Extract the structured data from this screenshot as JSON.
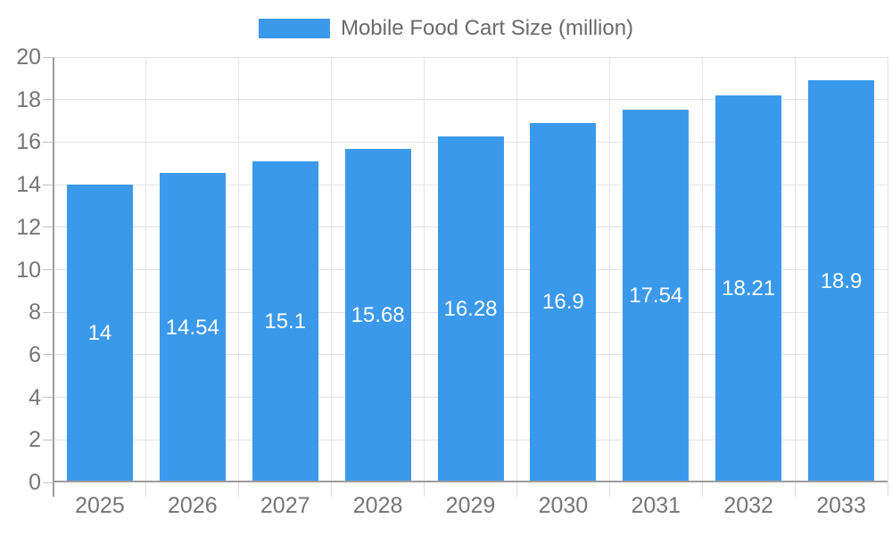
{
  "chart_data": {
    "type": "bar",
    "title": "",
    "legend_label": "Mobile Food Cart Size (million)",
    "legend_position": "top",
    "categories": [
      "2025",
      "2026",
      "2027",
      "2028",
      "2029",
      "2030",
      "2031",
      "2032",
      "2033"
    ],
    "series": [
      {
        "name": "Mobile Food Cart Size (million)",
        "values": [
          14,
          14.54,
          15.1,
          15.68,
          16.28,
          16.9,
          17.54,
          18.21,
          18.9
        ]
      }
    ],
    "data_labels_shown": true,
    "xlabel": "",
    "ylabel": "",
    "ylim": [
      0,
      20
    ],
    "ytick_step": 2,
    "grid": true
  },
  "colors": {
    "background": "#ffffff",
    "bar": "#3B99EC",
    "bar_label": "#ffffff",
    "grid": "#E4E4E4",
    "axis": "#9C9C9C",
    "tick": "#C4C4C4",
    "tick_light": "#DCDCDC",
    "tick_text": "#757575",
    "legend_text": "#6A6A6A"
  }
}
